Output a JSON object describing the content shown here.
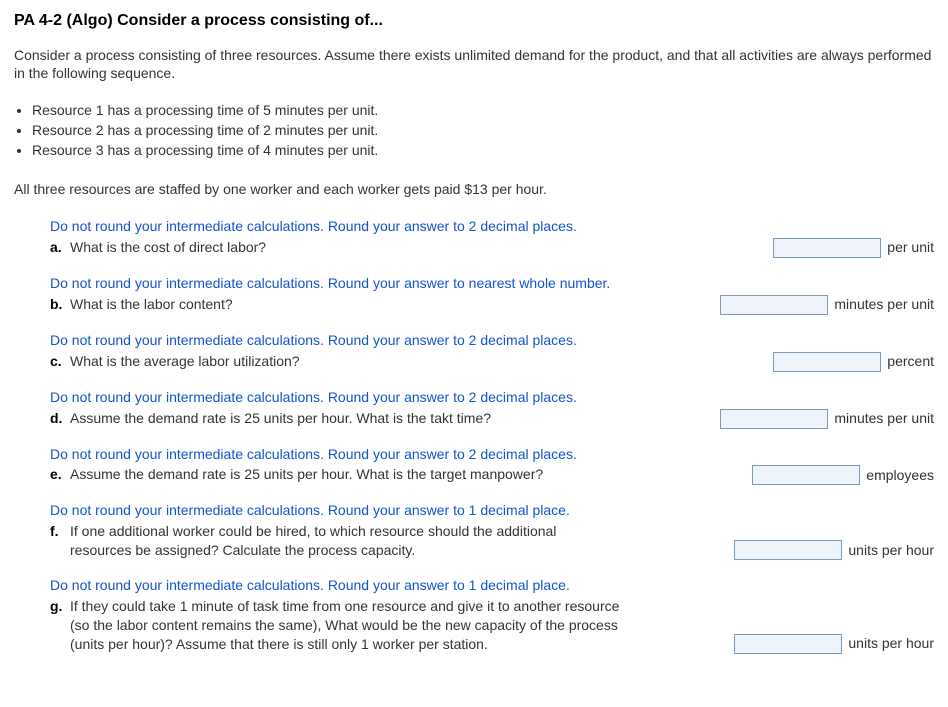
{
  "title": "PA 4-2 (Algo) Consider a process consisting of...",
  "intro": "Consider a process consisting of three resources. Assume there exists unlimited demand for the product, and that all activities are always performed in the following sequence.",
  "resources": [
    "Resource 1 has a processing time of 5 minutes per unit.",
    "Resource 2 has a processing time of 2 minutes per unit.",
    "Resource 3 has a processing time of 4 minutes per unit."
  ],
  "staffing": "All three resources are staffed by one worker and each worker gets paid $13 per hour.",
  "instr_2dp": "Do not round your intermediate calculations. Round your answer to 2 decimal places.",
  "instr_whole": "Do not round your intermediate calculations. Round your answer to nearest whole number.",
  "instr_1dp": "Do not round your intermediate calculations. Round your answer to 1 decimal place.",
  "questions": {
    "a": {
      "letter": "a.",
      "text": "What is the cost of direct labor?",
      "unit": "per unit"
    },
    "b": {
      "letter": "b.",
      "text": "What is the labor content?",
      "unit": "minutes per unit"
    },
    "c": {
      "letter": "c.",
      "text": "What is the average labor utilization?",
      "unit": "percent"
    },
    "d": {
      "letter": "d.",
      "text": "Assume the demand rate is 25 units per hour. What is the takt time?",
      "unit": "minutes per unit"
    },
    "e": {
      "letter": "e.",
      "text": "Assume the demand rate is 25 units per hour. What is the target manpower?",
      "unit": "employees"
    },
    "f": {
      "letter": "f.",
      "text": "If one additional worker could be hired, to which resource should the additional resources be assigned? Calculate the process capacity.",
      "unit": "units per hour"
    },
    "g": {
      "letter": "g.",
      "text": "If they could take 1 minute of task time from one resource and give it to another resource (so the labor content remains the same), What would be the new capacity of the process (units per hour)? Assume that there is still only 1 worker per station.",
      "unit": "units per hour"
    }
  },
  "colors": {
    "instruction": "#1155cc",
    "input_bg": "#eef4fa",
    "input_border": "#7a9ab5"
  }
}
